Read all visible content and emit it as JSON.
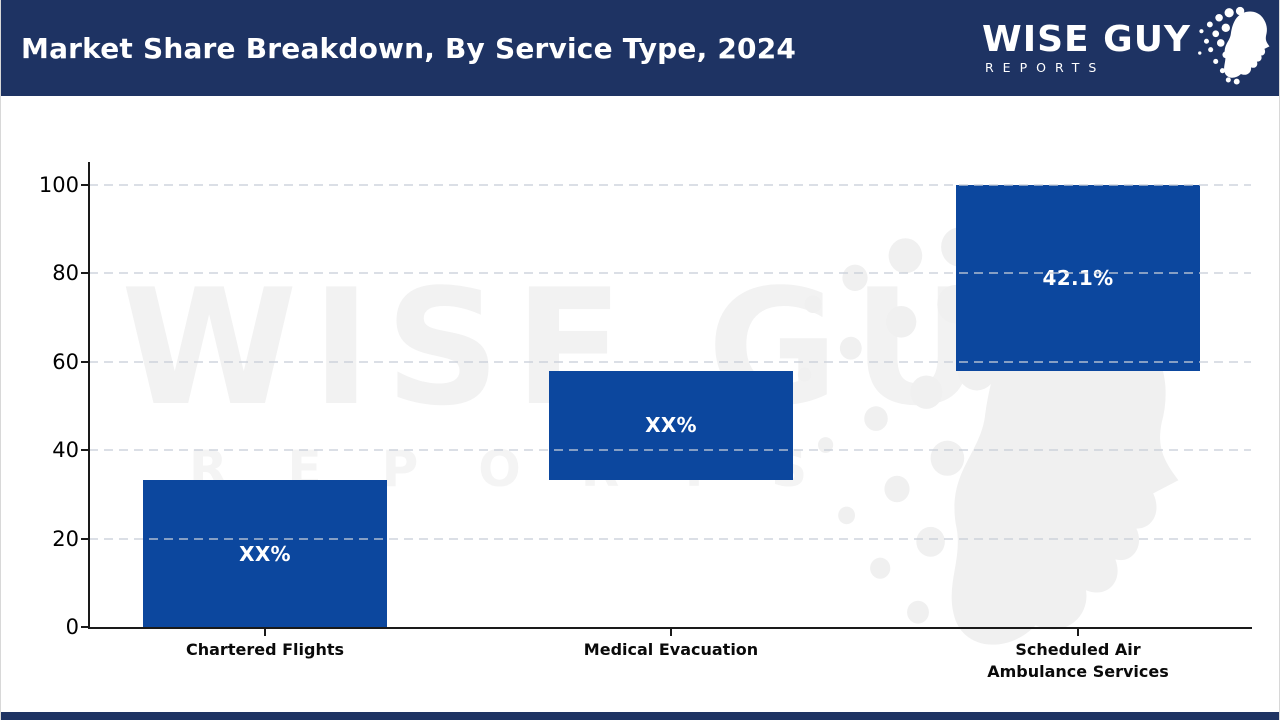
{
  "header": {
    "title": "Market Share Breakdown, By Service Type, 2024",
    "logo": {
      "line1": "WISE GUY",
      "line2": "REPORTS"
    },
    "bg_color": "#1e3363"
  },
  "watermark": {
    "line1": "WISE GUY",
    "line2": "REPORTS"
  },
  "chart_data": {
    "type": "bar",
    "subtype": "waterfall",
    "title": "Market Share Breakdown, By Service Type, 2024",
    "categories": [
      "Chartered Flights",
      "Medical Evacuation",
      "Scheduled Air Ambulance Services"
    ],
    "series": [
      {
        "name": "Market Share (%)",
        "values": [
          33.2,
          24.7,
          42.1
        ]
      }
    ],
    "segments": [
      {
        "category": "Chartered Flights",
        "base": 0,
        "top": 33.2,
        "label": "XX%"
      },
      {
        "category": "Medical Evacuation",
        "base": 33.2,
        "top": 57.9,
        "label": "XX%"
      },
      {
        "category": "Scheduled Air Ambulance Services",
        "base": 57.9,
        "top": 100,
        "label": "42.1%"
      }
    ],
    "xlabel": "",
    "ylabel": "",
    "ylim": [
      0,
      105
    ],
    "yticks": [
      0,
      20,
      40,
      60,
      80,
      100
    ],
    "grid": "horizontal-dashed",
    "legend": "none",
    "bar_color": "#0c479e",
    "bar_label_color": "#ffffff",
    "accent_navy": "#1e3363"
  }
}
